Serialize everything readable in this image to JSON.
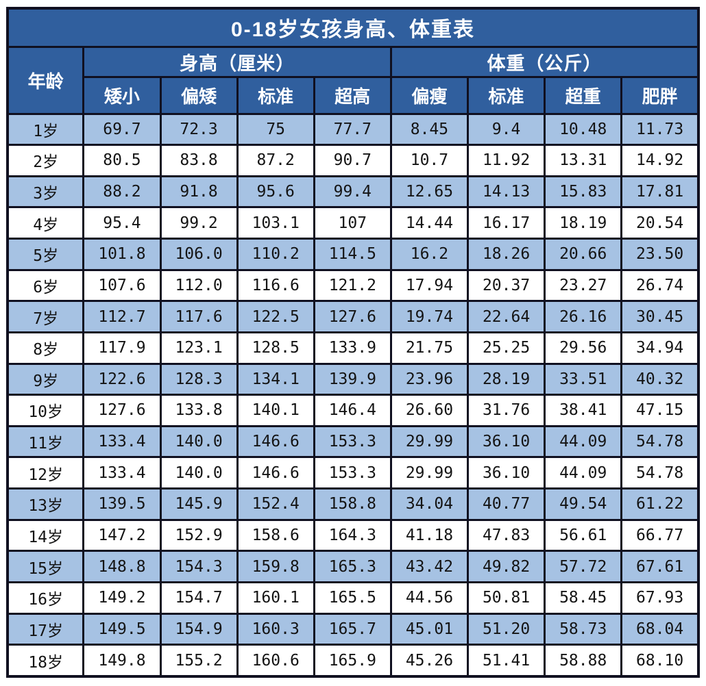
{
  "title": "0-18岁女孩身高、体重表",
  "table": {
    "age_header": "年龄",
    "height_group": "身高（厘米）",
    "weight_group": "体重（公斤）",
    "sub_headers": [
      "矮小",
      "偏矮",
      "标准",
      "超高",
      "偏瘦",
      "标准",
      "超重",
      "肥胖"
    ],
    "rows": [
      {
        "age": "1岁",
        "values": [
          "69.7",
          "72.3",
          "75",
          "77.7",
          "8.45",
          "9.4",
          "10.48",
          "11.73"
        ]
      },
      {
        "age": "2岁",
        "values": [
          "80.5",
          "83.8",
          "87.2",
          "90.7",
          "10.7",
          "11.92",
          "13.31",
          "14.92"
        ]
      },
      {
        "age": "3岁",
        "values": [
          "88.2",
          "91.8",
          "95.6",
          "99.4",
          "12.65",
          "14.13",
          "15.83",
          "17.81"
        ]
      },
      {
        "age": "4岁",
        "values": [
          "95.4",
          "99.2",
          "103.1",
          "107",
          "14.44",
          "16.17",
          "18.19",
          "20.54"
        ]
      },
      {
        "age": "5岁",
        "values": [
          "101.8",
          "106.0",
          "110.2",
          "114.5",
          "16.2",
          "18.26",
          "20.66",
          "23.50"
        ]
      },
      {
        "age": "6岁",
        "values": [
          "107.6",
          "112.0",
          "116.6",
          "121.2",
          "17.94",
          "20.37",
          "23.27",
          "26.74"
        ]
      },
      {
        "age": "7岁",
        "values": [
          "112.7",
          "117.6",
          "122.5",
          "127.6",
          "19.74",
          "22.64",
          "26.16",
          "30.45"
        ]
      },
      {
        "age": "8岁",
        "values": [
          "117.9",
          "123.1",
          "128.5",
          "133.9",
          "21.75",
          "25.25",
          "29.56",
          "34.94"
        ]
      },
      {
        "age": "9岁",
        "values": [
          "122.6",
          "128.3",
          "134.1",
          "139.9",
          "23.96",
          "28.19",
          "33.51",
          "40.32"
        ]
      },
      {
        "age": "10岁",
        "values": [
          "127.6",
          "133.8",
          "140.1",
          "146.4",
          "26.60",
          "31.76",
          "38.41",
          "47.15"
        ]
      },
      {
        "age": "11岁",
        "values": [
          "133.4",
          "140.0",
          "146.6",
          "153.3",
          "29.99",
          "36.10",
          "44.09",
          "54.78"
        ]
      },
      {
        "age": "12岁",
        "values": [
          "133.4",
          "140.0",
          "146.6",
          "153.3",
          "29.99",
          "36.10",
          "44.09",
          "54.78"
        ]
      },
      {
        "age": "13岁",
        "values": [
          "139.5",
          "145.9",
          "152.4",
          "158.8",
          "34.04",
          "40.77",
          "49.54",
          "61.22"
        ]
      },
      {
        "age": "14岁",
        "values": [
          "147.2",
          "152.9",
          "158.6",
          "164.3",
          "41.18",
          "47.83",
          "56.61",
          "66.77"
        ]
      },
      {
        "age": "15岁",
        "values": [
          "148.8",
          "154.3",
          "159.8",
          "165.3",
          "43.42",
          "49.82",
          "57.72",
          "67.61"
        ]
      },
      {
        "age": "16岁",
        "values": [
          "149.2",
          "154.7",
          "160.1",
          "165.5",
          "44.56",
          "50.81",
          "58.45",
          "67.93"
        ]
      },
      {
        "age": "17岁",
        "values": [
          "149.5",
          "154.9",
          "160.3",
          "165.7",
          "45.01",
          "51.20",
          "58.73",
          "68.04"
        ]
      },
      {
        "age": "18岁",
        "values": [
          "149.8",
          "155.2",
          "160.6",
          "165.9",
          "45.26",
          "51.41",
          "58.88",
          "68.10"
        ]
      }
    ]
  },
  "chart_data": {
    "type": "table",
    "title": "0-18岁女孩身高、体重表",
    "column_groups": [
      {
        "label": "身高（厘米）",
        "columns": [
          "矮小",
          "偏矮",
          "标准",
          "超高"
        ]
      },
      {
        "label": "体重（公斤）",
        "columns": [
          "偏瘦",
          "标准",
          "超重",
          "肥胖"
        ]
      }
    ],
    "categories": [
      "1岁",
      "2岁",
      "3岁",
      "4岁",
      "5岁",
      "6岁",
      "7岁",
      "8岁",
      "9岁",
      "10岁",
      "11岁",
      "12岁",
      "13岁",
      "14岁",
      "15岁",
      "16岁",
      "17岁",
      "18岁"
    ],
    "series": [
      {
        "name": "身高-矮小",
        "values": [
          69.7,
          80.5,
          88.2,
          95.4,
          101.8,
          107.6,
          112.7,
          117.9,
          122.6,
          127.6,
          133.4,
          133.4,
          139.5,
          147.2,
          148.8,
          149.2,
          149.5,
          149.8
        ]
      },
      {
        "name": "身高-偏矮",
        "values": [
          72.3,
          83.8,
          91.8,
          99.2,
          106.0,
          112.0,
          117.6,
          123.1,
          128.3,
          133.8,
          140.0,
          140.0,
          145.9,
          152.9,
          154.3,
          154.7,
          154.9,
          155.2
        ]
      },
      {
        "name": "身高-标准",
        "values": [
          75,
          87.2,
          95.6,
          103.1,
          110.2,
          116.6,
          122.5,
          128.5,
          134.1,
          140.1,
          146.6,
          146.6,
          152.4,
          158.6,
          159.8,
          160.1,
          160.3,
          160.6
        ]
      },
      {
        "name": "身高-超高",
        "values": [
          77.7,
          90.7,
          99.4,
          107,
          114.5,
          121.2,
          127.6,
          133.9,
          139.9,
          146.4,
          153.3,
          153.3,
          158.8,
          164.3,
          165.3,
          165.5,
          165.7,
          165.9
        ]
      },
      {
        "name": "体重-偏瘦",
        "values": [
          8.45,
          10.7,
          12.65,
          14.44,
          16.2,
          17.94,
          19.74,
          21.75,
          23.96,
          26.6,
          29.99,
          29.99,
          34.04,
          41.18,
          43.42,
          44.56,
          45.01,
          45.26
        ]
      },
      {
        "name": "体重-标准",
        "values": [
          9.4,
          11.92,
          14.13,
          16.17,
          18.26,
          20.37,
          22.64,
          25.25,
          28.19,
          31.76,
          36.1,
          36.1,
          40.77,
          47.83,
          49.82,
          50.81,
          51.2,
          51.41
        ]
      },
      {
        "name": "体重-超重",
        "values": [
          10.48,
          13.31,
          15.83,
          18.19,
          20.66,
          23.27,
          26.16,
          29.56,
          33.51,
          38.41,
          44.09,
          44.09,
          49.54,
          56.61,
          57.72,
          58.45,
          58.73,
          58.88
        ]
      },
      {
        "name": "体重-肥胖",
        "values": [
          11.73,
          14.92,
          17.81,
          20.54,
          23.5,
          26.74,
          30.45,
          34.94,
          40.32,
          47.15,
          54.78,
          54.78,
          61.22,
          66.77,
          67.61,
          67.93,
          68.04,
          68.1
        ]
      }
    ]
  },
  "colors": {
    "header_bg": "#305f9e",
    "header_text": "#ffffff",
    "row_alt_bg": "#a6c2e3",
    "row_bg": "#ffffff",
    "border": "#101020",
    "body_text": "#141414",
    "page_bg": "#ffffff"
  }
}
